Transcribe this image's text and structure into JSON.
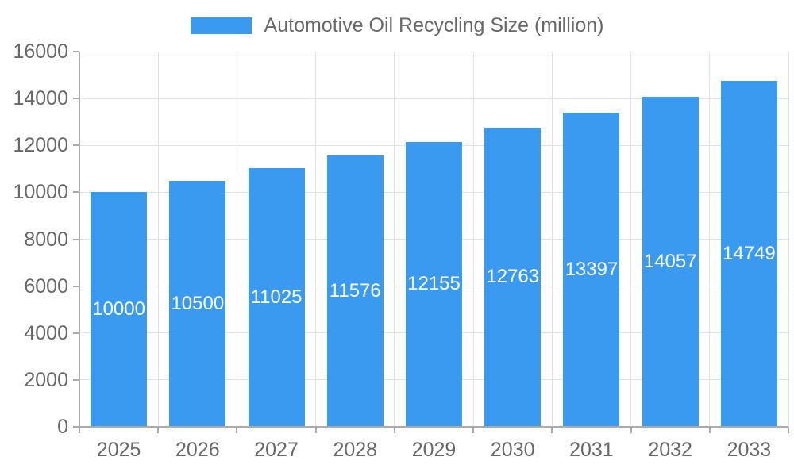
{
  "chart_data": {
    "type": "bar",
    "title": "Automotive Oil Recycling Size (million)",
    "legend_position": "top",
    "categories": [
      "2025",
      "2026",
      "2027",
      "2028",
      "2029",
      "2030",
      "2031",
      "2032",
      "2033"
    ],
    "values": [
      10000,
      10500,
      11025,
      11576,
      12155,
      12763,
      13397,
      14057,
      14749
    ],
    "xlabel": "",
    "ylabel": "",
    "ylim": [
      0,
      16000
    ],
    "y_ticks": [
      0,
      2000,
      4000,
      6000,
      8000,
      10000,
      12000,
      14000,
      16000
    ],
    "grid": true,
    "bar_labels_inside": true,
    "colors": {
      "bar": "#3a9af0",
      "bar_label": "#ffffff",
      "axis_text": "#686868",
      "grid_line": "#e2e2e2",
      "axis_line": "#ababab",
      "background": "#ffffff"
    }
  }
}
